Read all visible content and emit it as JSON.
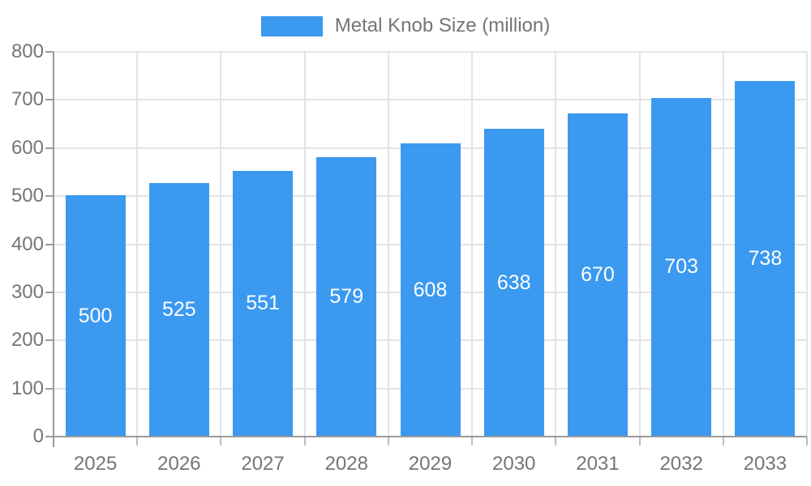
{
  "chart_data": {
    "type": "bar",
    "title": "",
    "legend": {
      "label": "Metal Knob Size (million)",
      "position": "top-center"
    },
    "categories": [
      "2025",
      "2026",
      "2027",
      "2028",
      "2029",
      "2030",
      "2031",
      "2032",
      "2033"
    ],
    "series": [
      {
        "name": "Metal Knob Size (million)",
        "values": [
          500,
          525,
          551,
          579,
          608,
          638,
          670,
          703,
          738
        ]
      }
    ],
    "xlabel": "",
    "ylabel": "",
    "ylim": [
      0,
      800
    ],
    "ytick_step": 100,
    "ytick_labels": [
      "0",
      "100",
      "200",
      "300",
      "400",
      "500",
      "600",
      "700",
      "800"
    ],
    "grid": true,
    "value_labels": "inside-center",
    "colors": {
      "bar": "#3b99ef",
      "value_label": "#ffffff",
      "axis_text": "#757575",
      "legend_text": "#757575",
      "axis_line": "#9a9a9a",
      "gridline": "#e4e4e4",
      "tick": "#bdbdbd",
      "background": "#ffffff"
    }
  }
}
